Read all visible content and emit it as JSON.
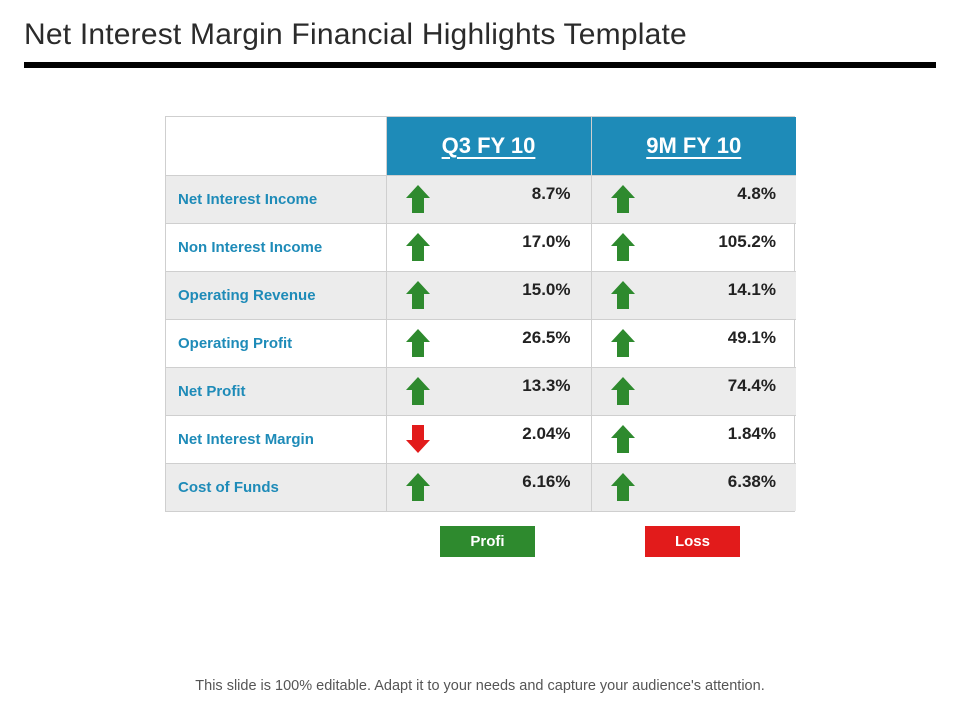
{
  "title": "Net Interest Margin Financial Highlights Template",
  "footer": "This slide is 100% editable. Adapt it to your needs and capture your audience's attention.",
  "colors": {
    "header_bg": "#1e8bb8",
    "label_color": "#1e8bb8",
    "row_shade": "#ececec",
    "up_arrow": "#2e8a2e",
    "down_arrow": "#e21b1b",
    "profit_badge": "#2e8a2e",
    "loss_badge": "#e21b1b"
  },
  "table": {
    "periods": [
      "Q3 FY 10",
      "9M FY 10"
    ],
    "rows": [
      {
        "label": "Net Interest Income",
        "shaded": true,
        "cells": [
          {
            "dir": "up",
            "value": "8.7%"
          },
          {
            "dir": "up",
            "value": "4.8%"
          }
        ]
      },
      {
        "label": "Non Interest Income",
        "shaded": false,
        "cells": [
          {
            "dir": "up",
            "value": "17.0%"
          },
          {
            "dir": "up",
            "value": "105.2%"
          }
        ]
      },
      {
        "label": "Operating Revenue",
        "shaded": true,
        "cells": [
          {
            "dir": "up",
            "value": "15.0%"
          },
          {
            "dir": "up",
            "value": "14.1%"
          }
        ]
      },
      {
        "label": "Operating Profit",
        "shaded": false,
        "cells": [
          {
            "dir": "up",
            "value": "26.5%"
          },
          {
            "dir": "up",
            "value": "49.1%"
          }
        ]
      },
      {
        "label": "Net Profit",
        "shaded": true,
        "cells": [
          {
            "dir": "up",
            "value": "13.3%"
          },
          {
            "dir": "up",
            "value": "74.4%"
          }
        ]
      },
      {
        "label": "Net Interest Margin",
        "shaded": false,
        "cells": [
          {
            "dir": "down",
            "value": "2.04%"
          },
          {
            "dir": "up",
            "value": "1.84%"
          }
        ]
      },
      {
        "label": "Cost of Funds",
        "shaded": true,
        "cells": [
          {
            "dir": "up",
            "value": "6.16%"
          },
          {
            "dir": "up",
            "value": "6.38%"
          }
        ]
      }
    ]
  },
  "legend": {
    "profit_label": "Profi",
    "loss_label": "Loss"
  },
  "arrow_svg": {
    "width": 26,
    "height": 30
  }
}
